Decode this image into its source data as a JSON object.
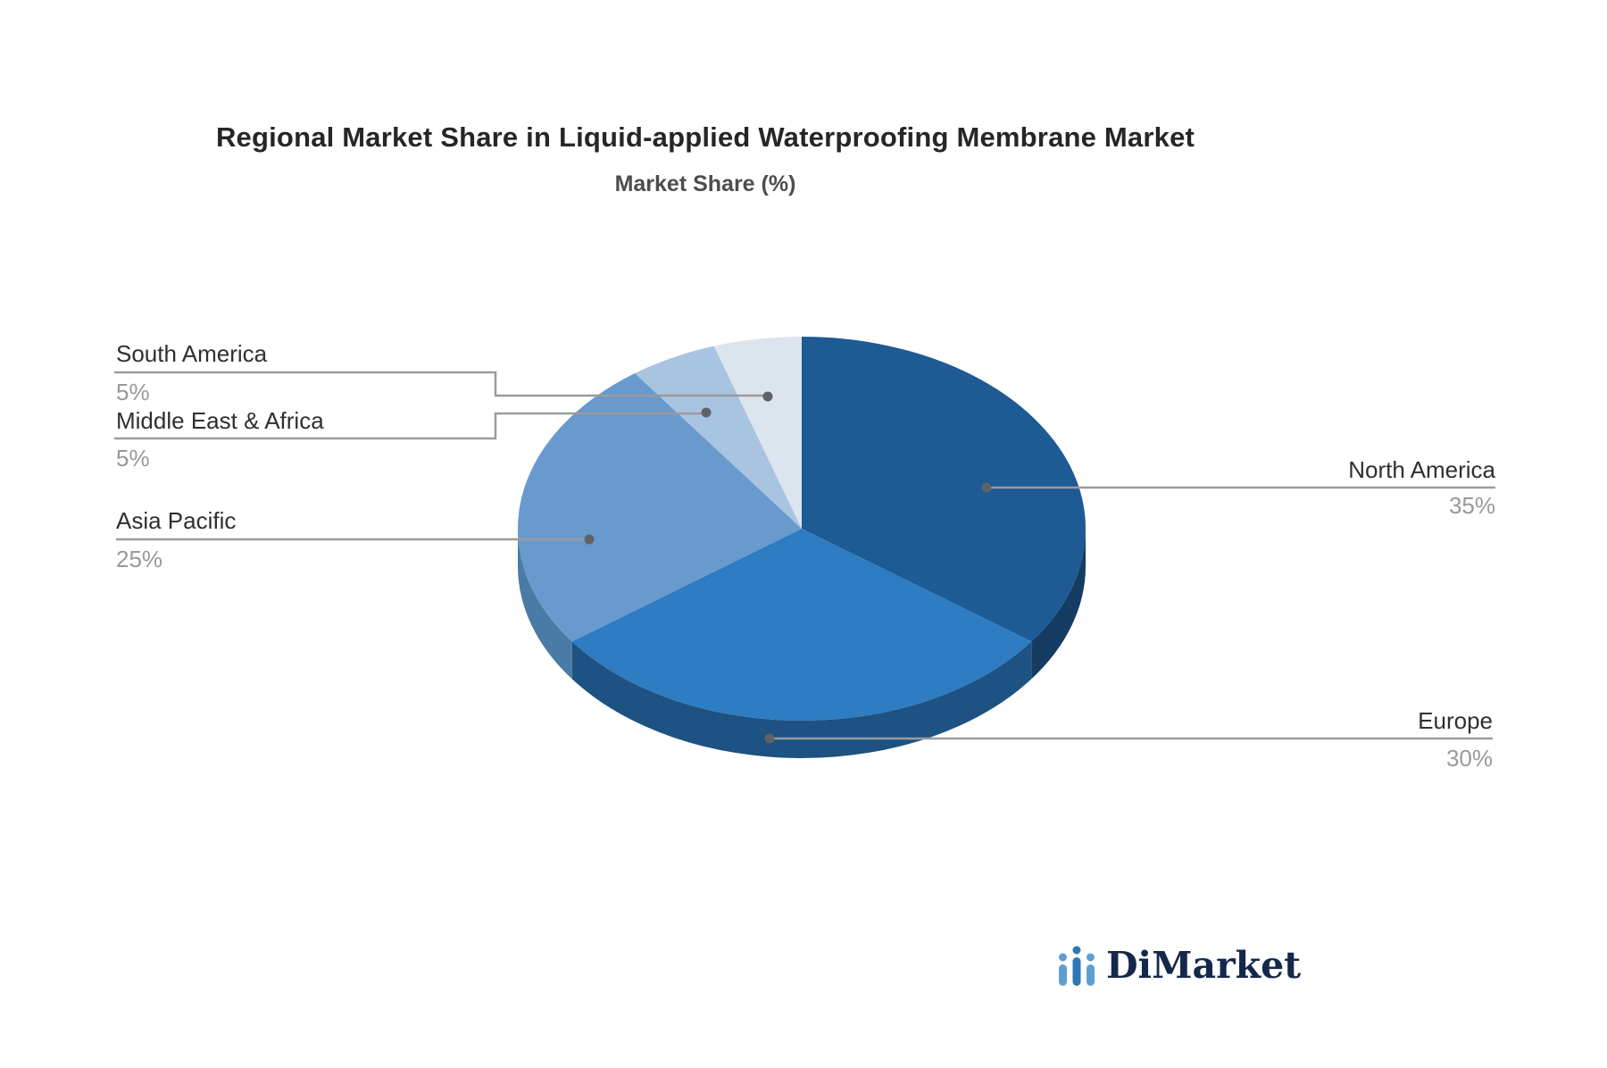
{
  "title": "Regional Market Share in Liquid-applied Waterproofing Membrane Market",
  "subtitle": "Market Share (%)",
  "chart_data": {
    "type": "pie",
    "title": "Regional Market Share in Liquid-applied Waterproofing Membrane Market",
    "subtitle": "Market Share (%)",
    "unit": "%",
    "style": "3d-pie",
    "start_angle_deg": 0,
    "direction": "clockwise",
    "legend": "none",
    "connector_color": "#9b9b9b",
    "connector_dot_color": "#5f6368",
    "categories": [
      "North America",
      "Europe",
      "Asia Pacific",
      "Middle East & Africa",
      "South America"
    ],
    "values": [
      35,
      30,
      25,
      5,
      5
    ],
    "slices": [
      {
        "label": "North America",
        "value": 35,
        "display": "35%",
        "color": "#1e5a94",
        "side_color": "#153d63"
      },
      {
        "label": "Europe",
        "value": 30,
        "display": "30%",
        "color": "#2e7cc1",
        "side_color": "#1d5282"
      },
      {
        "label": "Asia Pacific",
        "value": 25,
        "display": "25%",
        "color": "#689ace",
        "side_color": "#4a7aa6"
      },
      {
        "label": "Middle East & Africa",
        "value": 5,
        "display": "5%",
        "color": "#a9c4e0",
        "side_color": "#7e9fc0"
      },
      {
        "label": "South America",
        "value": 5,
        "display": "5%",
        "color": "#dce4ee",
        "side_color": "#b7c5d6"
      }
    ]
  },
  "watermark": {
    "brand": "DiMarket",
    "icon": "bar-chart-dots-icon"
  }
}
